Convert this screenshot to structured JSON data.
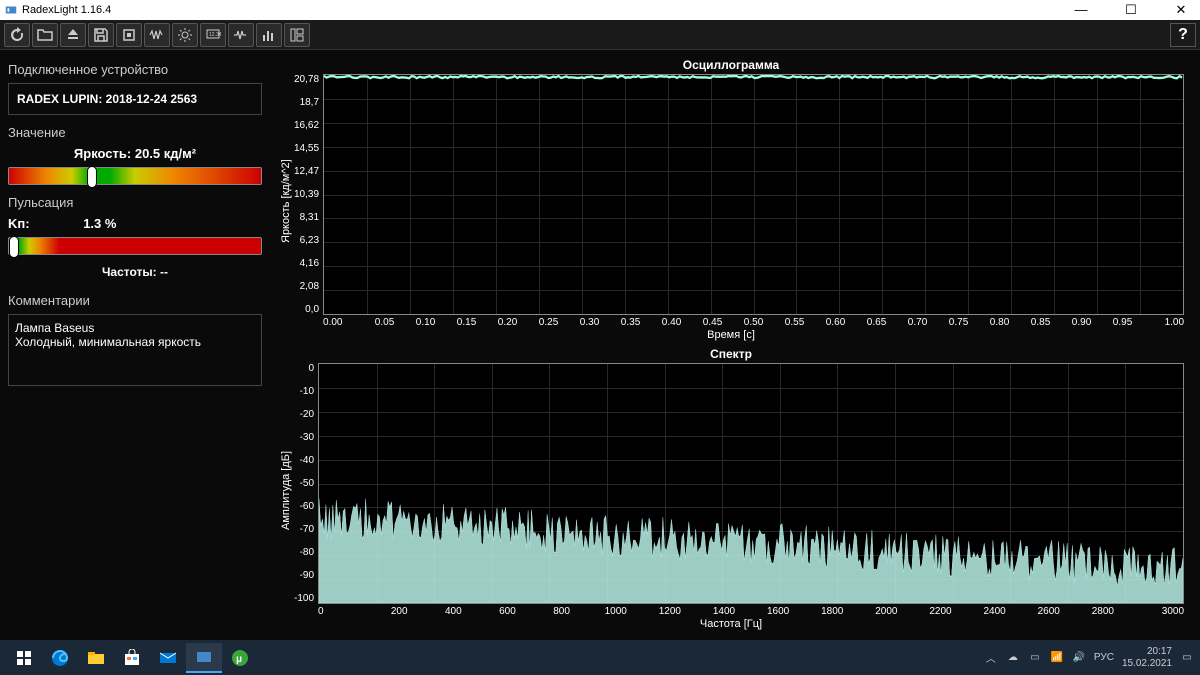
{
  "window": {
    "title": "RadexLight 1.16.4"
  },
  "sidebar": {
    "device_section": "Подключенное устройство",
    "device_name": "RADEX LUPIN: 2018-12-24 2563",
    "value_section": "Значение",
    "brightness_label": "Яркость:",
    "brightness_value": "20.5 кд/м²",
    "brightness_marker_pct": 33,
    "pulsation_section": "Пульсация",
    "kp_label": "Kп:",
    "kp_value": "1.3 %",
    "pulsation_marker_pct": 2,
    "freq_label": "Частоты: --",
    "comments_section": "Комментарии",
    "comment_line1": "Лампа Baseus",
    "comment_line2": "Холодный, минимальная яркость"
  },
  "chart1": {
    "title": "Осциллограмма",
    "ylabel": "Яркость [кд/м^2]",
    "xlabel": "Время [с]",
    "yticks": [
      "20,78",
      "18,7",
      "16,62",
      "14,55",
      "12,47",
      "10,39",
      "8,31",
      "6,23",
      "4,16",
      "2,08",
      "0,0"
    ],
    "xticks": [
      "0.00",
      "0.05",
      "0.10",
      "0.15",
      "0.20",
      "0.25",
      "0.30",
      "0.35",
      "0.40",
      "0.45",
      "0.50",
      "0.55",
      "0.60",
      "0.65",
      "0.70",
      "0.75",
      "0.80",
      "0.85",
      "0.90",
      "0.95",
      "1.00"
    ],
    "ylim": [
      0,
      20.78
    ],
    "xlim": [
      0,
      1.0
    ],
    "line_color": "#a0ffe0",
    "line_y": 20.6,
    "background_color": "#000000",
    "grid_color": "#282828"
  },
  "chart2": {
    "title": "Спектр",
    "ylabel": "Амплитуда [дБ]",
    "xlabel": "Частота [Гц]",
    "yticks": [
      "0",
      "-10",
      "-20",
      "-30",
      "-40",
      "-50",
      "-60",
      "-70",
      "-80",
      "-90",
      "-100"
    ],
    "xticks": [
      "0",
      "200",
      "400",
      "600",
      "800",
      "1000",
      "1200",
      "1400",
      "1600",
      "1800",
      "2000",
      "2200",
      "2400",
      "2600",
      "2800",
      "3000"
    ],
    "ylim": [
      -100,
      0
    ],
    "xlim": [
      0,
      3000
    ],
    "fill_color": "#b8f0e8",
    "baseline_start": -70,
    "baseline_end": -92,
    "background_color": "#000000",
    "grid_color": "#282828"
  },
  "taskbar": {
    "time": "20:17",
    "date": "15.02.2021",
    "lang": "РУС"
  }
}
